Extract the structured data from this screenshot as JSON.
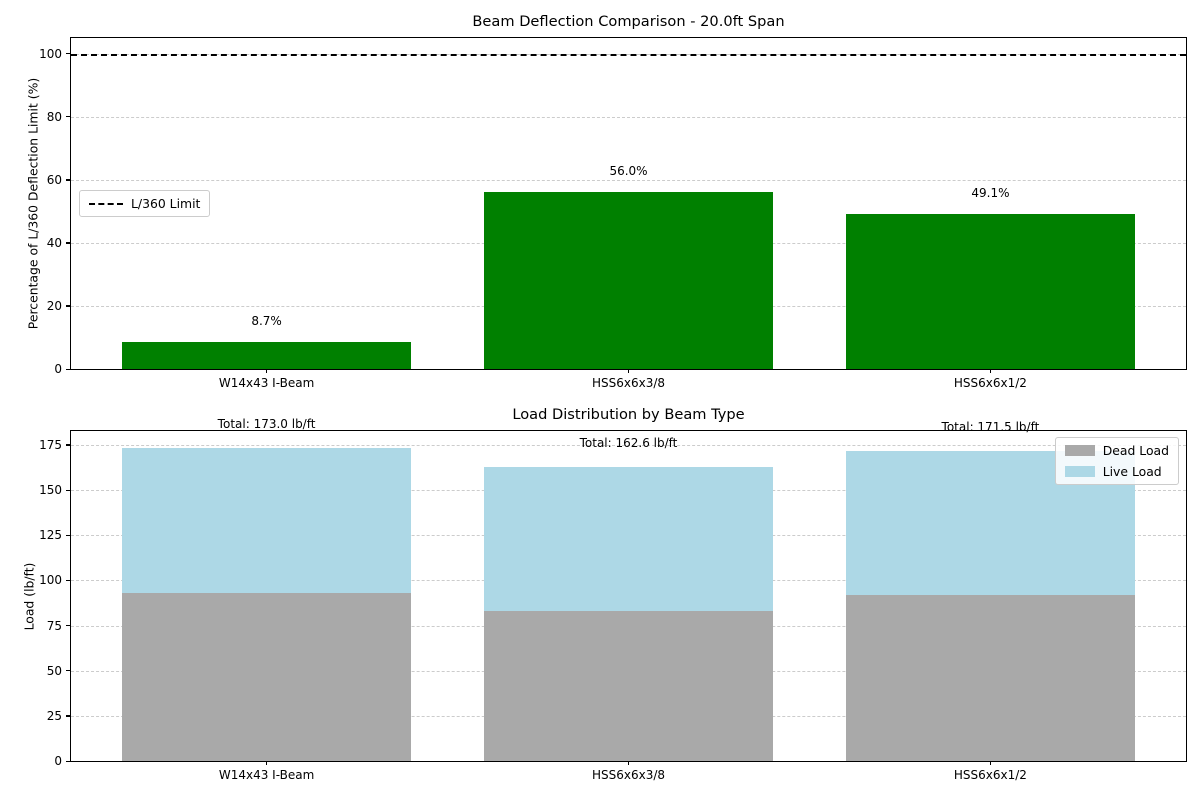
{
  "chart_data": [
    {
      "type": "bar",
      "title": "Beam Deflection Comparison - 20.0ft Span",
      "ylabel": "Percentage of L/360 Deflection Limit (%)",
      "xlabel": "",
      "categories": [
        "W14x43 I-Beam",
        "HSS6x6x3/8",
        "HSS6x6x1/2"
      ],
      "values": [
        8.7,
        56.0,
        49.1
      ],
      "value_labels": [
        "8.7%",
        "56.0%",
        "49.1%"
      ],
      "bar_color": "#008000",
      "yticks": [
        0,
        20,
        40,
        60,
        80,
        100
      ],
      "ylim": [
        0,
        105
      ],
      "grid": "horizontal-dashed",
      "reference_line": {
        "value": 100,
        "label": "L/360 Limit",
        "color": "#000000",
        "style": "dashed"
      },
      "legend": {
        "position": "center-left",
        "entries": [
          {
            "label": "L/360 Limit",
            "sample": "dashed-line",
            "color": "#000000"
          }
        ]
      }
    },
    {
      "type": "stacked-bar",
      "title": "Load Distribution by Beam Type",
      "ylabel": "Load (lb/ft)",
      "xlabel": "",
      "categories": [
        "W14x43 I-Beam",
        "HSS6x6x3/8",
        "HSS6x6x1/2"
      ],
      "series": [
        {
          "name": "Dead Load",
          "color": "#a9a9a9",
          "values": [
            93.0,
            82.6,
            91.5
          ]
        },
        {
          "name": "Live Load",
          "color": "#add8e6",
          "values": [
            80.0,
            80.0,
            80.0
          ]
        }
      ],
      "totals": [
        173.0,
        162.6,
        171.5
      ],
      "total_labels": [
        "Total: 173.0 lb/ft",
        "Total: 162.6 lb/ft",
        "Total: 171.5 lb/ft"
      ],
      "yticks": [
        0,
        25,
        50,
        75,
        100,
        125,
        150,
        175
      ],
      "ylim": [
        0,
        182.7
      ],
      "grid": "horizontal-dashed",
      "legend": {
        "position": "top-right",
        "entries": [
          {
            "label": "Dead Load",
            "sample": "patch",
            "color": "#a9a9a9"
          },
          {
            "label": "Live Load",
            "sample": "patch",
            "color": "#add8e6"
          }
        ]
      }
    }
  ]
}
